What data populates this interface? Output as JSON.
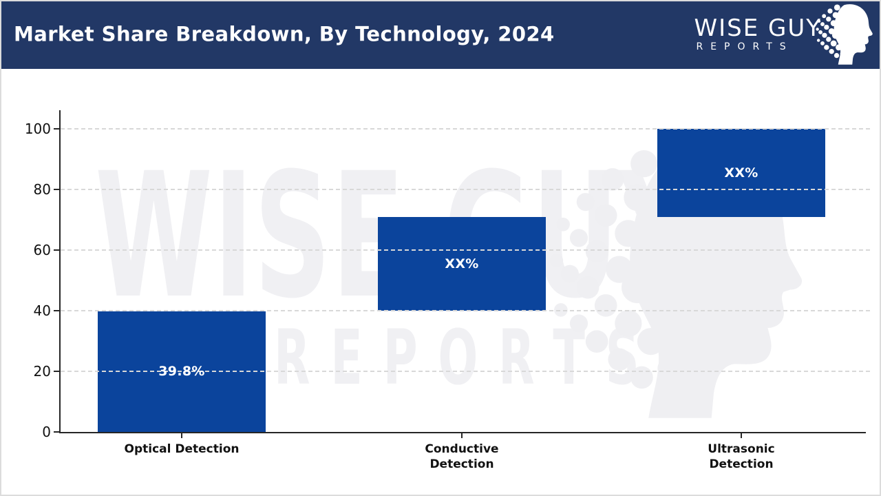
{
  "header": {
    "title": "Market Share Breakdown, By Technology, 2024",
    "logo": {
      "line1": "WISE GUY",
      "line2": "REPORTS"
    }
  },
  "watermark": {
    "line1": "WISE GUY",
    "line2": "REPORTS"
  },
  "chart_data": {
    "type": "bar",
    "variant": "floating-segment waterfall (market share bridge)",
    "title": "Market Share Breakdown, By Technology, 2024",
    "categories": [
      "Optical Detection",
      "Conductive\nDetection",
      "Ultrasonic\nDetection"
    ],
    "bars": [
      {
        "category": "Optical Detection",
        "base": 0,
        "top": 39.8,
        "label": "39.8%"
      },
      {
        "category": "Conductive\nDetection",
        "base": 40,
        "top": 71,
        "label": "XX%"
      },
      {
        "category": "Ultrasonic\nDetection",
        "base": 71,
        "top": 100,
        "label": "XX%"
      }
    ],
    "xlabel": "",
    "ylabel": "",
    "ylim": [
      0,
      106
    ],
    "yticks": [
      0,
      20,
      40,
      60,
      80,
      100
    ],
    "grid": {
      "horizontal": true,
      "style": "dashed",
      "drawn_above_bars": true
    },
    "legend": null,
    "colors": {
      "bar": "#0b449c",
      "bar_label": "#ffffff",
      "grid": "#d8d8d8",
      "axis": "#262626",
      "tick_label": "#111111"
    }
  },
  "colors": {
    "header_bg": "#223866",
    "page_bg": "#ffffff",
    "watermark": "#f0f0f3",
    "frame_border": "#dcdcdc"
  }
}
